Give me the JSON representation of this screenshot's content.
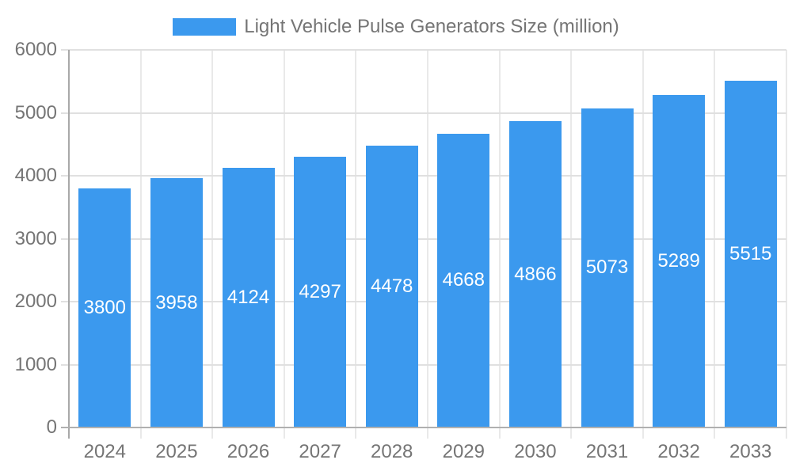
{
  "chart_data": {
    "type": "bar",
    "title": "Light Vehicle Pulse Generators Size (million)",
    "series_name": "Light Vehicle Pulse Generators Size (million)",
    "categories": [
      "2024",
      "2025",
      "2026",
      "2027",
      "2028",
      "2029",
      "2030",
      "2031",
      "2032",
      "2033"
    ],
    "values": [
      3800,
      3958,
      4124,
      4297,
      4478,
      4668,
      4866,
      5073,
      5289,
      5515
    ],
    "xlabel": "",
    "ylabel": "",
    "ylim": [
      0,
      6000
    ],
    "yticks": [
      0,
      1000,
      2000,
      3000,
      4000,
      5000,
      6000
    ],
    "grid": true,
    "legend_position": "top",
    "colors": {
      "bar": "#3B99EE",
      "value_label": "#ffffff",
      "axis_text": "#757575",
      "gridline": "#e0e0e0",
      "category_gridline": "#e9e9e9",
      "axis_line": "#a9a9a9"
    }
  }
}
